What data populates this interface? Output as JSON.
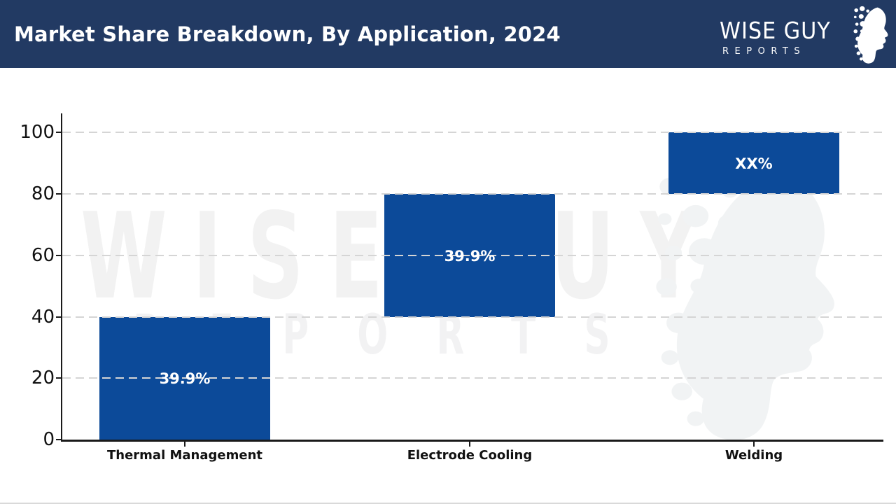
{
  "header": {
    "title": "Market Share Breakdown, By Application, 2024",
    "bg_color": "#223A63",
    "text_color": "#ffffff",
    "logo_text": "WISE GUY",
    "logo_subtext": "REPORTS",
    "logo_icon": "dotted-face-profile-icon"
  },
  "watermark": {
    "line1": "WISE GUY",
    "line2": "REPORTS",
    "icon": "dotted-face-profile-icon",
    "color": "#f2f2f2"
  },
  "chart_data": {
    "type": "bar",
    "variant": "stacked-waterfall",
    "title": "Market Share Breakdown, By Application, 2024",
    "categories": [
      "Thermal Management",
      "Electrode Cooling",
      "Welding"
    ],
    "bars": [
      {
        "category": "Thermal Management",
        "start": 0,
        "end": 40,
        "label": "39.9%"
      },
      {
        "category": "Electrode Cooling",
        "start": 40,
        "end": 80,
        "label": "39.9%"
      },
      {
        "category": "Welding",
        "start": 80,
        "end": 100,
        "label": "XX%"
      }
    ],
    "xlabel": "",
    "ylabel": "",
    "y_ticks": [
      0,
      20,
      40,
      60,
      80,
      100
    ],
    "ylim": [
      0,
      106
    ],
    "bar_color": "#0C4A99",
    "grid": "horizontal-dashed",
    "gridline_color": "#d5d5d5",
    "legend": "none",
    "axis_color": "#1a1a1a"
  }
}
